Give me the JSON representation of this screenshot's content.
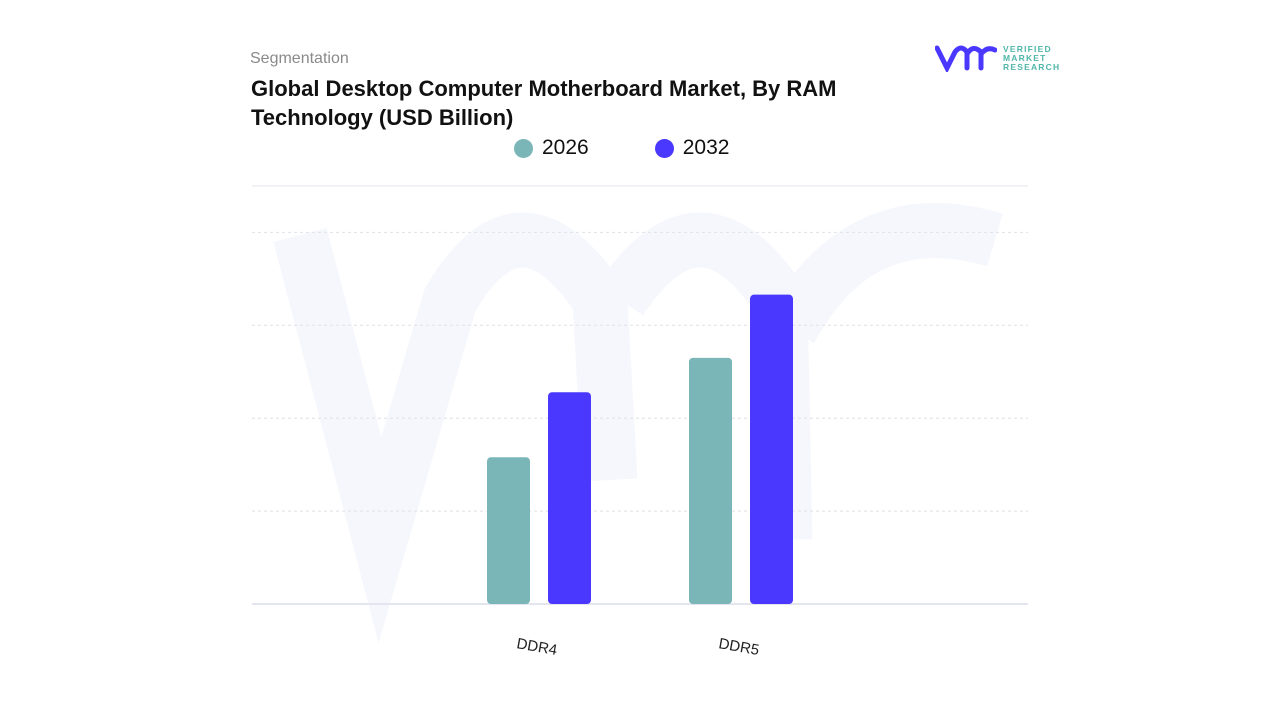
{
  "header": {
    "segment_label": "Segmentation",
    "title": "Global Desktop Computer Motherboard Market, By RAM Technology (USD Billion)"
  },
  "logo": {
    "line1": "VERIFIED",
    "line2": "MARKET",
    "line3": "RESEARCH"
  },
  "chart_data": {
    "type": "bar",
    "title": "Global Desktop Computer Motherboard Market, By RAM Technology (USD Billion)",
    "categories": [
      "DDR4",
      "DDR5"
    ],
    "series": [
      {
        "name": "2026",
        "color": "#7ab5b8",
        "values": [
          1.58,
          2.65
        ]
      },
      {
        "name": "2032",
        "color": "#4a38ff",
        "values": [
          2.28,
          3.33
        ]
      }
    ],
    "xlabel": "",
    "ylabel": "",
    "ylim": [
      0,
      4.5
    ],
    "y_tick_labels_shown": false,
    "grid": true,
    "legend": "top"
  }
}
